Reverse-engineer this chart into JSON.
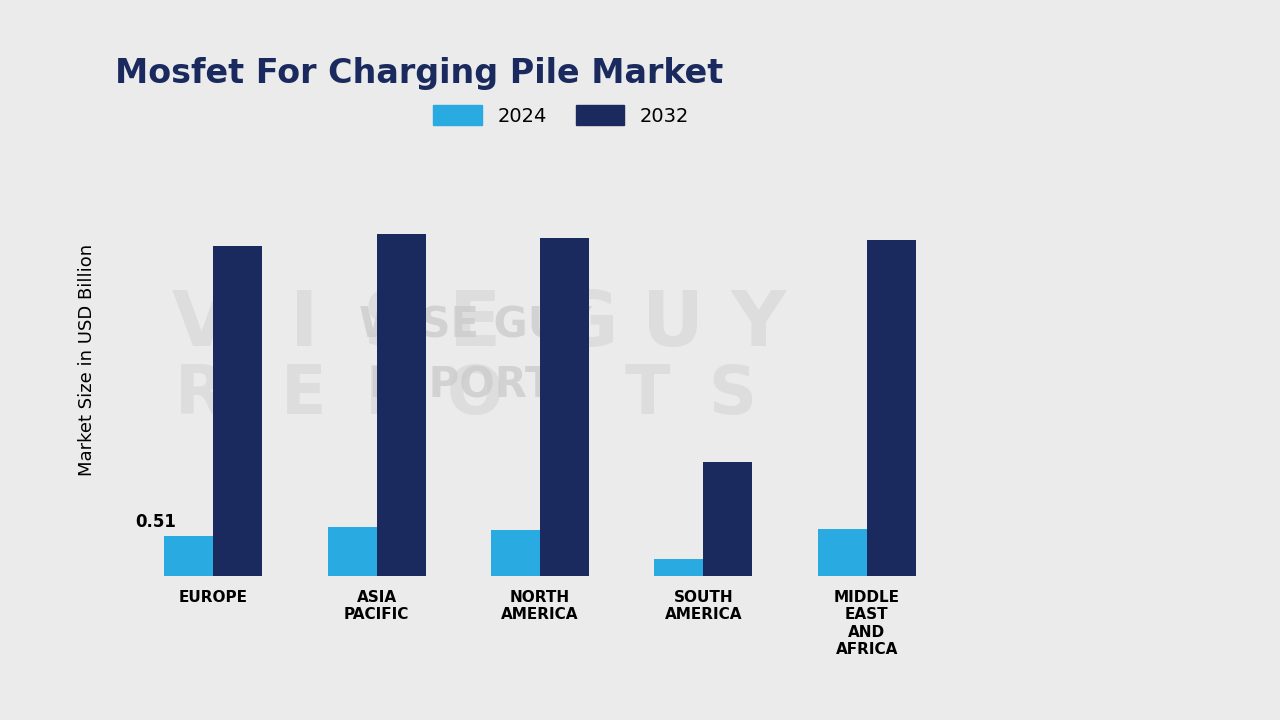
{
  "title": "Mosfet For Charging Pile Market",
  "ylabel": "Market Size in USD Billion",
  "categories": [
    "EUROPE",
    "ASIA\nPACIFIC",
    "NORTH\nAMERICA",
    "SOUTH\nAMERICA",
    "MIDDLE\nEAST\nAND\nAFRICA"
  ],
  "values_2024": [
    0.51,
    0.62,
    0.58,
    0.22,
    0.6
  ],
  "values_2032": [
    4.2,
    4.35,
    4.3,
    1.45,
    4.28
  ],
  "color_2024": "#29ABE2",
  "color_2032": "#1B2A5E",
  "annotation_label": "0.51",
  "background_color": "#EBEBEB",
  "title_color": "#1B2A5E",
  "bar_width": 0.3,
  "legend_labels": [
    "2024",
    "2032"
  ],
  "right_panel_color": "#1B2A5E",
  "ylim": [
    0,
    5.5
  ],
  "title_fontsize": 24,
  "ylabel_fontsize": 13,
  "legend_fontsize": 14,
  "tick_fontsize": 11
}
